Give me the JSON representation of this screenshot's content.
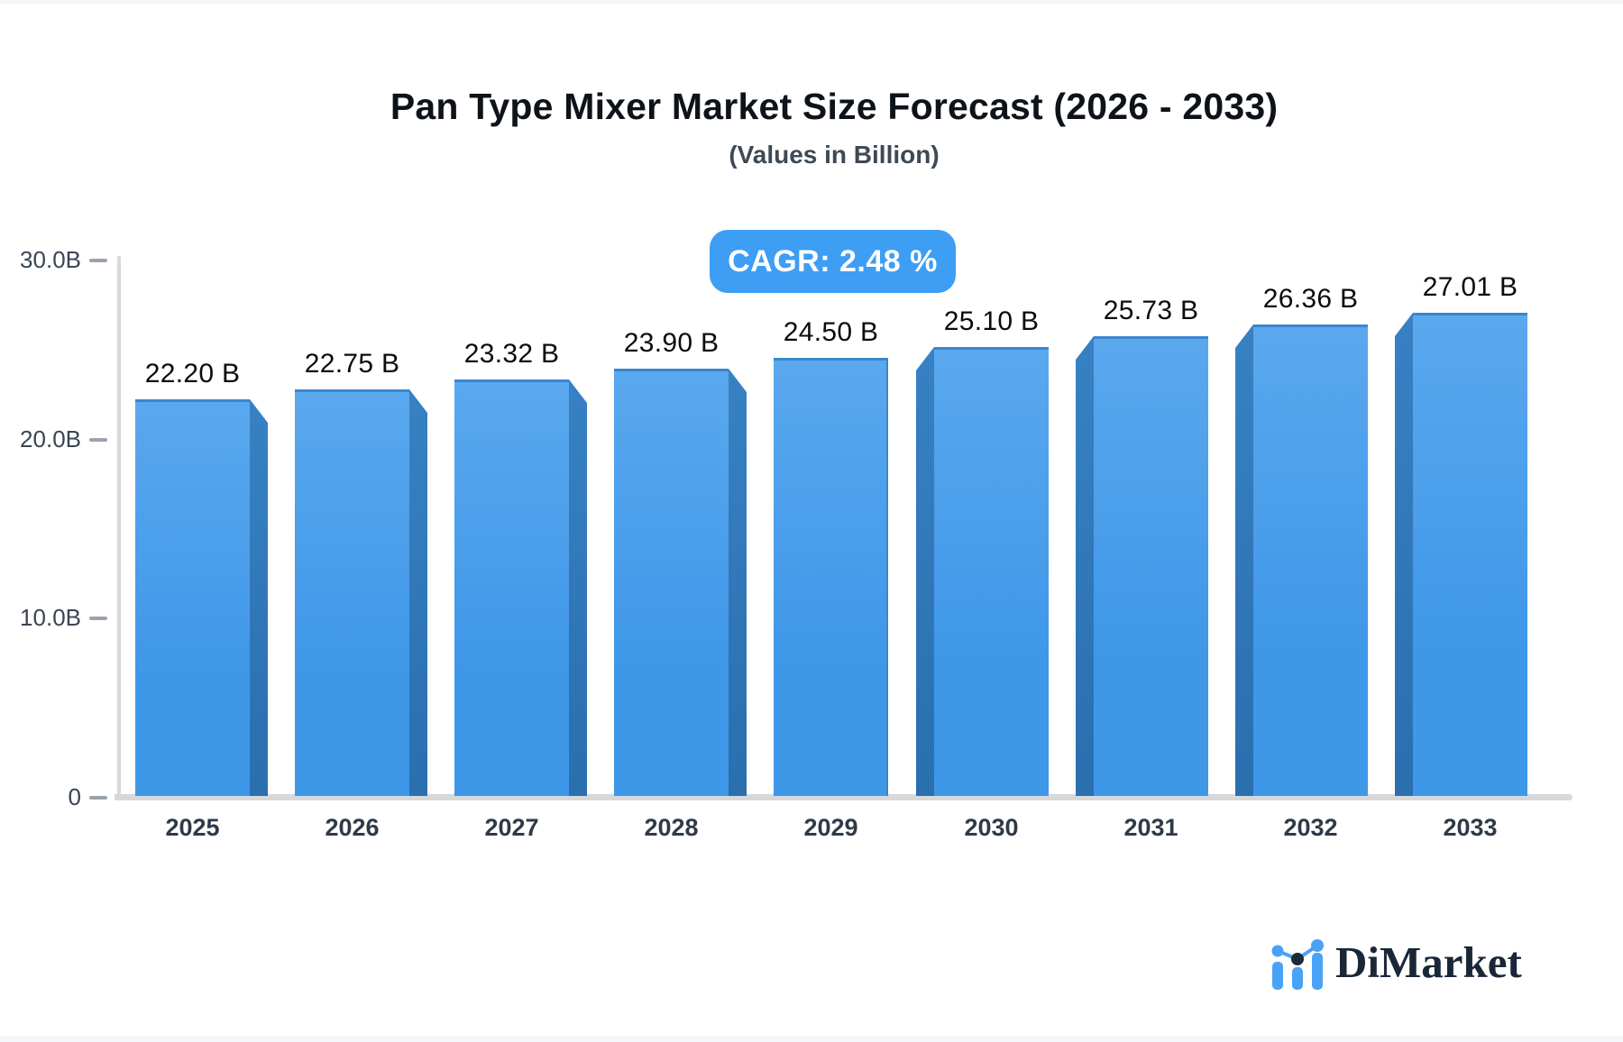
{
  "header": {
    "title": "Pan Type Mixer Market Size Forecast (2026 - 2033)",
    "subtitle": "(Values in Billion)"
  },
  "badge": {
    "label": "CAGR: 2.48 %",
    "bg_color": "#3d9ef3",
    "text_color": "#ffffff"
  },
  "chart_data": {
    "type": "bar",
    "title": "Pan Type Mixer Market Size Forecast (2026 - 2033)",
    "subtitle": "(Values in Billion)",
    "unit": "Billion USD",
    "cagr_percent": 2.48,
    "categories": [
      "2025",
      "2026",
      "2027",
      "2028",
      "2029",
      "2030",
      "2031",
      "2032",
      "2033"
    ],
    "values": [
      22.2,
      22.75,
      23.32,
      23.9,
      24.5,
      25.1,
      25.73,
      26.36,
      27.01
    ],
    "value_labels": [
      "22.20 B",
      "22.75 B",
      "23.32 B",
      "23.90 B",
      "24.50 B",
      "25.10 B",
      "25.73 B",
      "26.36 B",
      "27.01 B"
    ],
    "ylim": [
      0,
      30
    ],
    "yticks": [
      {
        "label": "30.0B",
        "value": 30
      },
      {
        "label": "20.0B",
        "value": 20
      },
      {
        "label": "10.0B",
        "value": 10
      },
      {
        "label": "0",
        "value": 0
      }
    ],
    "grid": false,
    "legend": false,
    "style": {
      "face_top": "#5aa8ee",
      "face_bottom": "#3f97e8",
      "face_edge": "#3a86d0",
      "side_top": "#3781c4",
      "side_bottom": "#2a6fae",
      "axis_color": "#d6d8dc",
      "tick_color": "#9aa3ad",
      "value_color": "#0a0c0e",
      "xlabel_color": "#2f3a48",
      "ytick_color": "#3a4553"
    }
  },
  "logo": {
    "text": "DiMarket",
    "icon_blue": "#4aa2f6",
    "icon_dark": "#1c2b3a",
    "text_color": "#1a2737"
  }
}
